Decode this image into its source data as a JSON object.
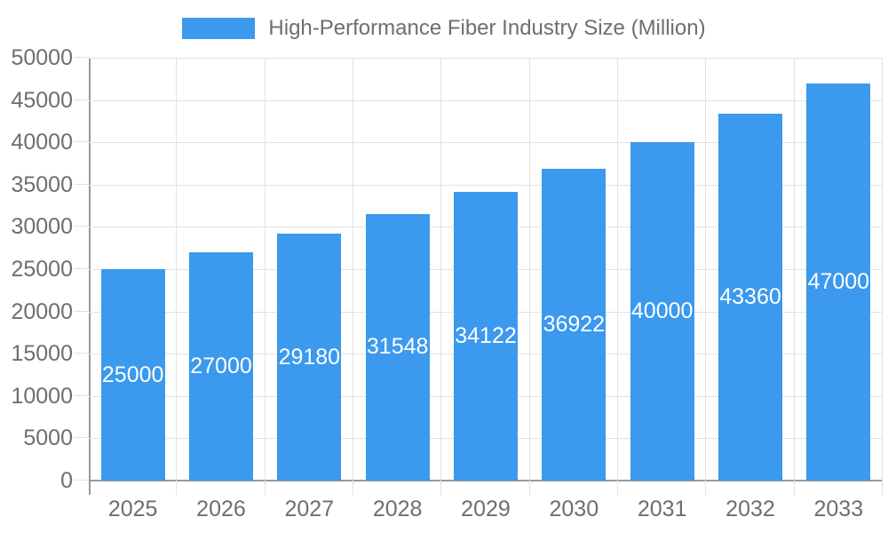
{
  "legend": {
    "label": "High-Performance Fiber Industry Size (Million)"
  },
  "chart_data": {
    "type": "bar",
    "title": "High-Performance Fiber Industry Size (Million)",
    "categories": [
      "2025",
      "2026",
      "2027",
      "2028",
      "2029",
      "2030",
      "2031",
      "2032",
      "2033"
    ],
    "values": [
      25000,
      27000,
      29180,
      31548,
      34122,
      36922,
      40000,
      43360,
      47000
    ],
    "xlabel": "",
    "ylabel": "",
    "ylim": [
      0,
      50000
    ],
    "ytick_step": 5000,
    "grid": true,
    "legend_position": "top-center",
    "value_label_position": "inside-center"
  },
  "colors": {
    "bar": "#3B99EE",
    "grid": "#E2E2E2",
    "axis": "#999999",
    "tick_text": "#6E6E6E",
    "bar_label_text": "#FFFFFF",
    "background": "#FFFFFF"
  }
}
